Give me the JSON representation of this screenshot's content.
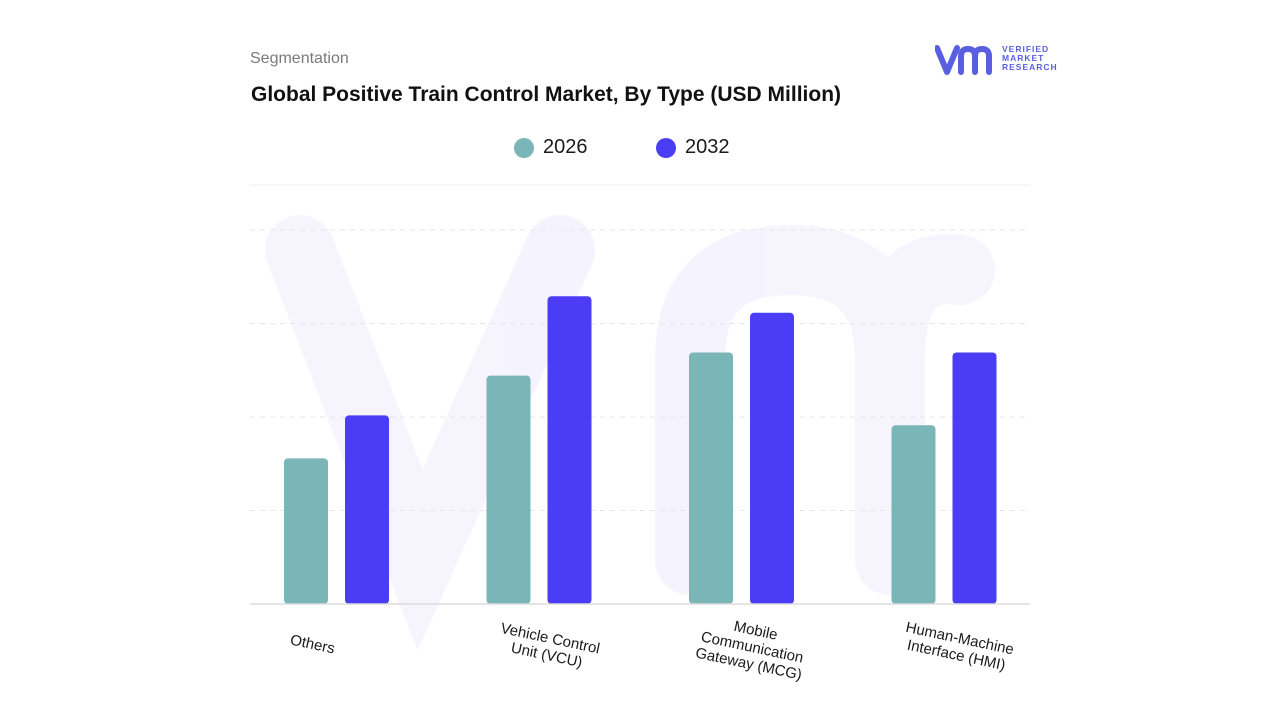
{
  "header": {
    "subtitle": "Segmentation",
    "title": "Global Positive Train Control Market, By Type (USD Million)"
  },
  "logo": {
    "mark": "vmr",
    "line1": "VERIFIED",
    "line2": "MARKET",
    "line3": "RESEARCH",
    "color": "#5a5fe0"
  },
  "chart_data": {
    "type": "bar",
    "title": "Global Positive Train Control Market, By Type (USD Million)",
    "categories": [
      "Others",
      "Vehicle Control Unit (VCU)",
      "Mobile Communication Gateway (MCG)",
      "Human-Machine Interface (HMI)"
    ],
    "category_lines": [
      [
        "Others"
      ],
      [
        "Vehicle Control",
        "Unit (VCU)"
      ],
      [
        "Mobile",
        "Communication",
        "Gateway (MCG)"
      ],
      [
        "Human-Machine",
        "Interface (HMI)"
      ]
    ],
    "series": [
      {
        "name": "2026",
        "color": "#7ab5b7",
        "values": [
          44,
          69,
          76,
          54
        ]
      },
      {
        "name": "2032",
        "color": "#4b3cf5",
        "values": [
          57,
          93,
          88,
          76
        ]
      }
    ],
    "ylim": [
      0,
      113
    ],
    "grid": true,
    "legend": "top-center",
    "xlabel": "",
    "ylabel": ""
  }
}
